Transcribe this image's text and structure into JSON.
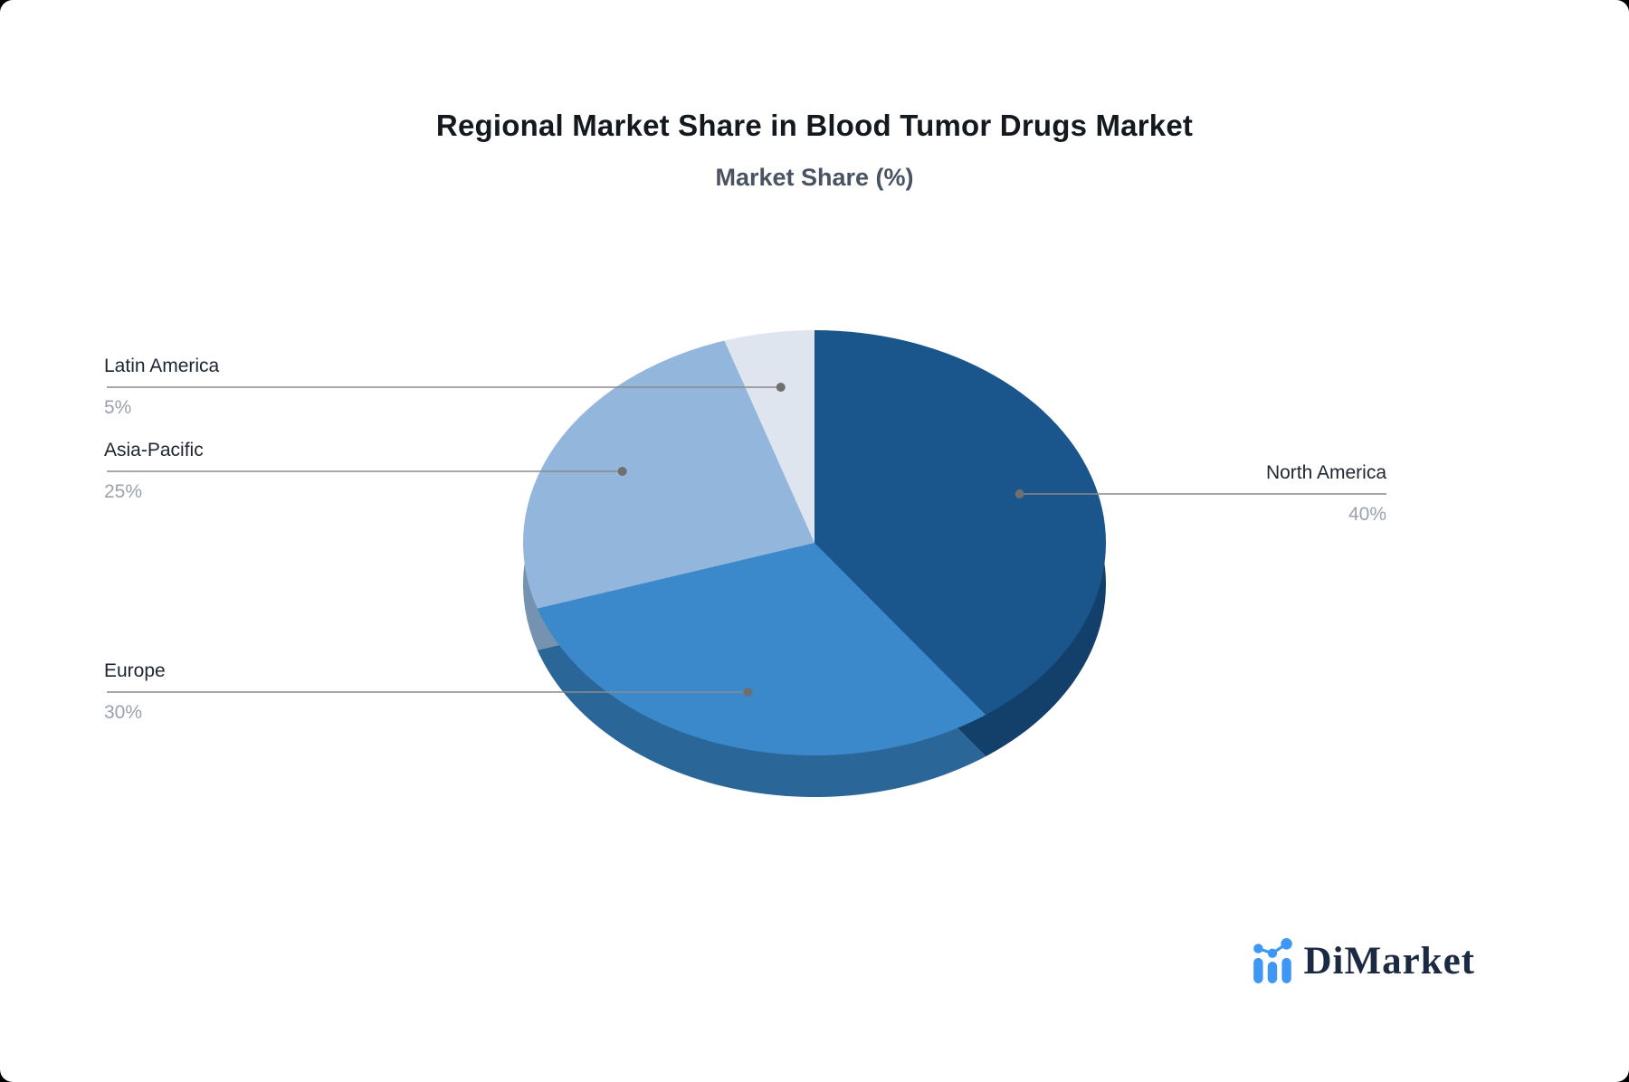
{
  "chart_data": {
    "type": "pie",
    "title": "Regional Market Share in Blood Tumor Drugs Market",
    "subtitle": "Market Share (%)",
    "unit": "%",
    "labels": [
      "North America",
      "Europe",
      "Asia-Pacific",
      "Latin America"
    ],
    "values": [
      40,
      30,
      25,
      5
    ],
    "colors": [
      "#1A558B",
      "#3B88CA",
      "#92B6DC",
      "#DFE5EF"
    ],
    "side_colors": [
      "#13406B",
      "#2B6698",
      "#7593B1",
      "#B9C3D1"
    ],
    "direction": "clockwise",
    "start_angle": "12 o'clock",
    "effect": "3d-extruded",
    "legend": "leader-line labels, name above line and percent value below",
    "label_color": "#1F2530",
    "value_color": "#9AA2AC",
    "leader_line_color": "#8A8A8A",
    "leader_dot_color": "#6F6F6F"
  },
  "logo": {
    "text": "DiMarket",
    "accent": "#3E96F5",
    "text_color": "#1B2A42"
  }
}
